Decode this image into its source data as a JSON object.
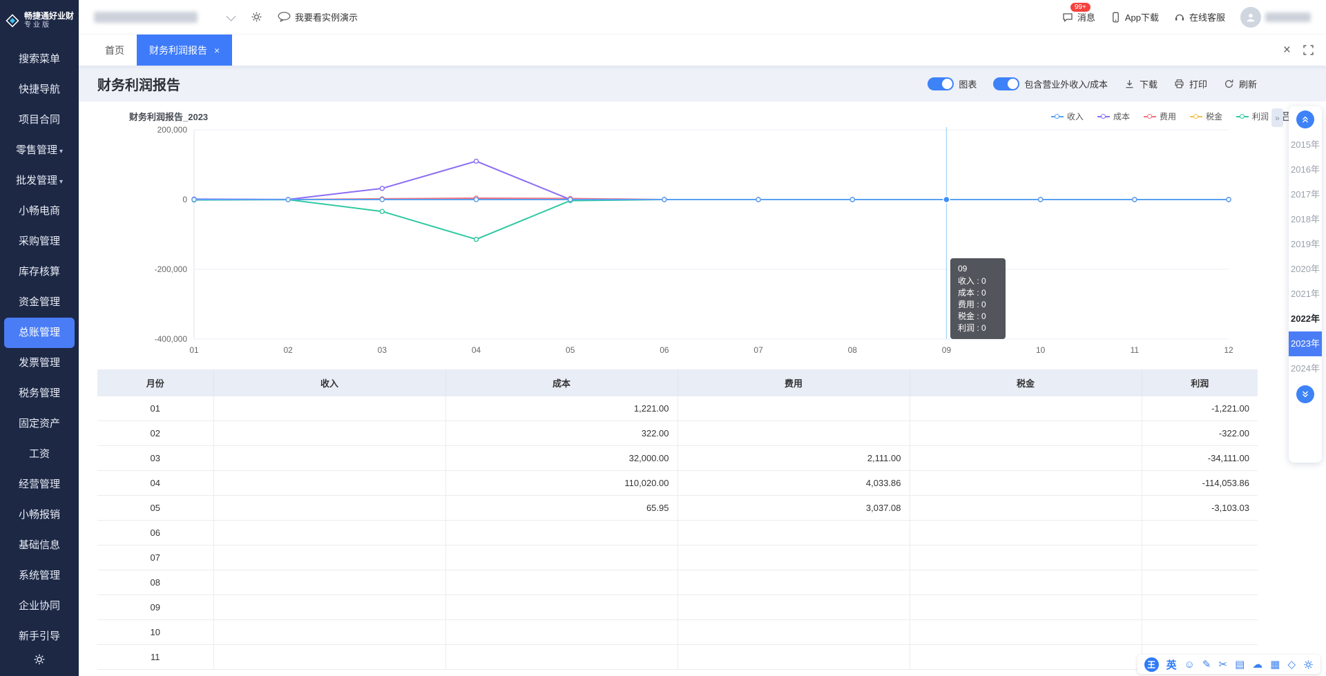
{
  "sidebar": {
    "logo_title": "畅捷通好业财",
    "logo_subtitle": "专业版",
    "items": [
      {
        "label": "搜索菜单"
      },
      {
        "label": "快捷导航"
      },
      {
        "label": "项目合同"
      },
      {
        "label": "零售管理",
        "caret": true
      },
      {
        "label": "批发管理",
        "caret": true
      },
      {
        "label": "小畅电商"
      },
      {
        "label": "采购管理"
      },
      {
        "label": "库存核算"
      },
      {
        "label": "资金管理"
      },
      {
        "label": "总账管理",
        "active": true
      },
      {
        "label": "发票管理"
      },
      {
        "label": "税务管理"
      },
      {
        "label": "固定资产"
      },
      {
        "label": "工资"
      },
      {
        "label": "经营管理"
      },
      {
        "label": "小畅报销"
      },
      {
        "label": "基础信息"
      },
      {
        "label": "系统管理"
      },
      {
        "label": "企业协同"
      },
      {
        "label": "新手引导"
      }
    ]
  },
  "topbar": {
    "demo_label": "我要看实例演示",
    "message_label": "消息",
    "message_badge": "99+",
    "app_label": "App下载",
    "service_label": "在线客服"
  },
  "tabs": {
    "items": [
      {
        "label": "首页"
      },
      {
        "label": "财务利润报告",
        "active": true,
        "closable": true
      }
    ]
  },
  "page": {
    "title": "财务利润报告",
    "toggle_chart_label": "图表",
    "toggle_include_label": "包含营业外收入/成本",
    "download_label": "下载",
    "print_label": "打印",
    "refresh_label": "刷新"
  },
  "chart_data": {
    "type": "line",
    "title": "财务利润报告_2023",
    "categories": [
      "01",
      "02",
      "03",
      "04",
      "05",
      "06",
      "07",
      "08",
      "09",
      "10",
      "11",
      "12"
    ],
    "ylim": [
      -400000,
      200000
    ],
    "y_ticks": [
      200000,
      0,
      -200000,
      -400000
    ],
    "y_tick_labels": [
      "200,000",
      "0",
      "-200,000",
      "-400,000"
    ],
    "grid": true,
    "legend_position": "top-right",
    "series": [
      {
        "name": "收入",
        "color": "#58a0f2",
        "values": [
          0,
          0,
          0,
          0,
          0,
          0,
          0,
          0,
          0,
          0,
          0,
          0
        ]
      },
      {
        "name": "成本",
        "color": "#8a6cf5",
        "values": [
          1221,
          322,
          32000,
          110020,
          65.95,
          0,
          0,
          0,
          0,
          0,
          0,
          0
        ]
      },
      {
        "name": "费用",
        "color": "#f0737f",
        "values": [
          0,
          0,
          2111,
          4033.86,
          3037.08,
          0,
          0,
          0,
          0,
          0,
          0,
          0
        ]
      },
      {
        "name": "税金",
        "color": "#f3c04b",
        "values": [
          0,
          0,
          0,
          0,
          0,
          0,
          0,
          0,
          0,
          0,
          0,
          0
        ]
      },
      {
        "name": "利润",
        "color": "#2fc9a2",
        "values": [
          -1221,
          -322,
          -34111,
          -114053.86,
          -3103.03,
          0,
          0,
          0,
          0,
          0,
          0,
          0
        ]
      }
    ],
    "tooltip": {
      "month": "09",
      "highlight_index": 8,
      "lines": [
        "收入 : 0",
        "成本 : 0",
        "费用 : 0",
        "税金 : 0",
        "利润 : 0"
      ]
    }
  },
  "table": {
    "headers": [
      "月份",
      "收入",
      "成本",
      "费用",
      "税金",
      "利润"
    ],
    "rows": [
      [
        "01",
        "",
        "1,221.00",
        "",
        "",
        "-1,221.00"
      ],
      [
        "02",
        "",
        "322.00",
        "",
        "",
        "-322.00"
      ],
      [
        "03",
        "",
        "32,000.00",
        "2,111.00",
        "",
        "-34,111.00"
      ],
      [
        "04",
        "",
        "110,020.00",
        "4,033.86",
        "",
        "-114,053.86"
      ],
      [
        "05",
        "",
        "65.95",
        "3,037.08",
        "",
        "-3,103.03"
      ],
      [
        "06",
        "",
        "",
        "",
        "",
        ""
      ],
      [
        "07",
        "",
        "",
        "",
        "",
        ""
      ],
      [
        "08",
        "",
        "",
        "",
        "",
        ""
      ],
      [
        "09",
        "",
        "",
        "",
        "",
        ""
      ],
      [
        "10",
        "",
        "",
        "",
        "",
        ""
      ],
      [
        "11",
        "",
        "",
        "",
        "",
        ""
      ]
    ]
  },
  "year_panel": {
    "years": [
      "2015年",
      "2016年",
      "2017年",
      "2018年",
      "2019年",
      "2020年",
      "2021年",
      "2022年",
      "2023年",
      "2024年"
    ],
    "active": "2023年",
    "emphasis": "2022年",
    "collapse_glyph": "»"
  },
  "ime": {
    "logo_char": "王",
    "mode_label": "英",
    "icons": [
      {
        "name": "smiley-icon",
        "glyph": "☺"
      },
      {
        "name": "pen-icon",
        "glyph": "✎"
      },
      {
        "name": "scissors-icon",
        "glyph": "✂"
      },
      {
        "name": "keyboard-icon",
        "glyph": "▤"
      },
      {
        "name": "cloud-icon",
        "glyph": "☁"
      },
      {
        "name": "grid-icon",
        "glyph": "▦"
      },
      {
        "name": "skin-icon",
        "glyph": "◇"
      }
    ]
  },
  "colors": {
    "accent_blue": "#3e7bfa",
    "sidebar_bg": "#1d2845",
    "active_menu": "#4a7df5",
    "badge_red": "#f5413d"
  }
}
